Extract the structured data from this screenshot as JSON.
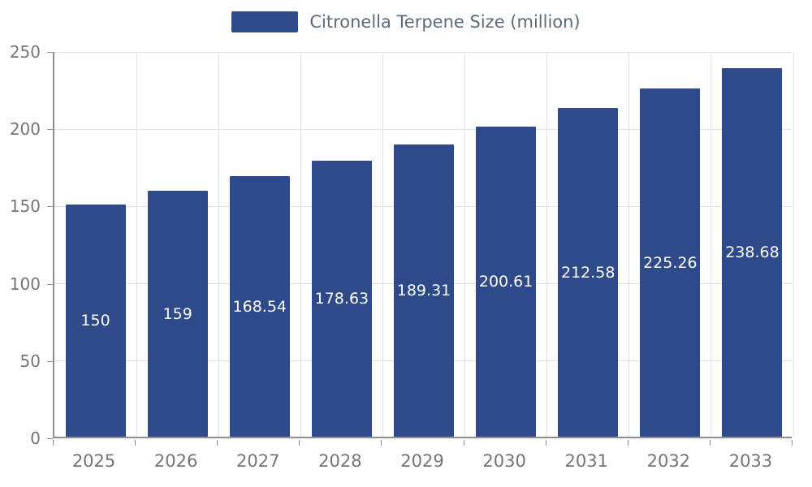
{
  "legend": {
    "label": "Citronella Terpene Size (million)"
  },
  "chart_data": {
    "type": "bar",
    "title": "Citronella Terpene Size (million)",
    "categories": [
      "2025",
      "2026",
      "2027",
      "2028",
      "2029",
      "2030",
      "2031",
      "2032",
      "2033"
    ],
    "values": [
      150,
      159,
      168.54,
      178.63,
      189.31,
      200.61,
      212.58,
      225.26,
      238.68
    ],
    "value_labels": [
      "150",
      "159",
      "168.54",
      "178.63",
      "189.31",
      "200.61",
      "212.58",
      "225.26",
      "238.68"
    ],
    "xlabel": "",
    "ylabel": "",
    "ylim": [
      0,
      250
    ],
    "yticks": [
      0,
      50,
      100,
      150,
      200,
      250
    ],
    "grid": true,
    "legend_position": "top-center",
    "bar_color": "#2f4a8a",
    "bar_label_color": "#ffffff",
    "axis_label_color": "#757575",
    "legend_text_color": "#5c6b7a"
  }
}
